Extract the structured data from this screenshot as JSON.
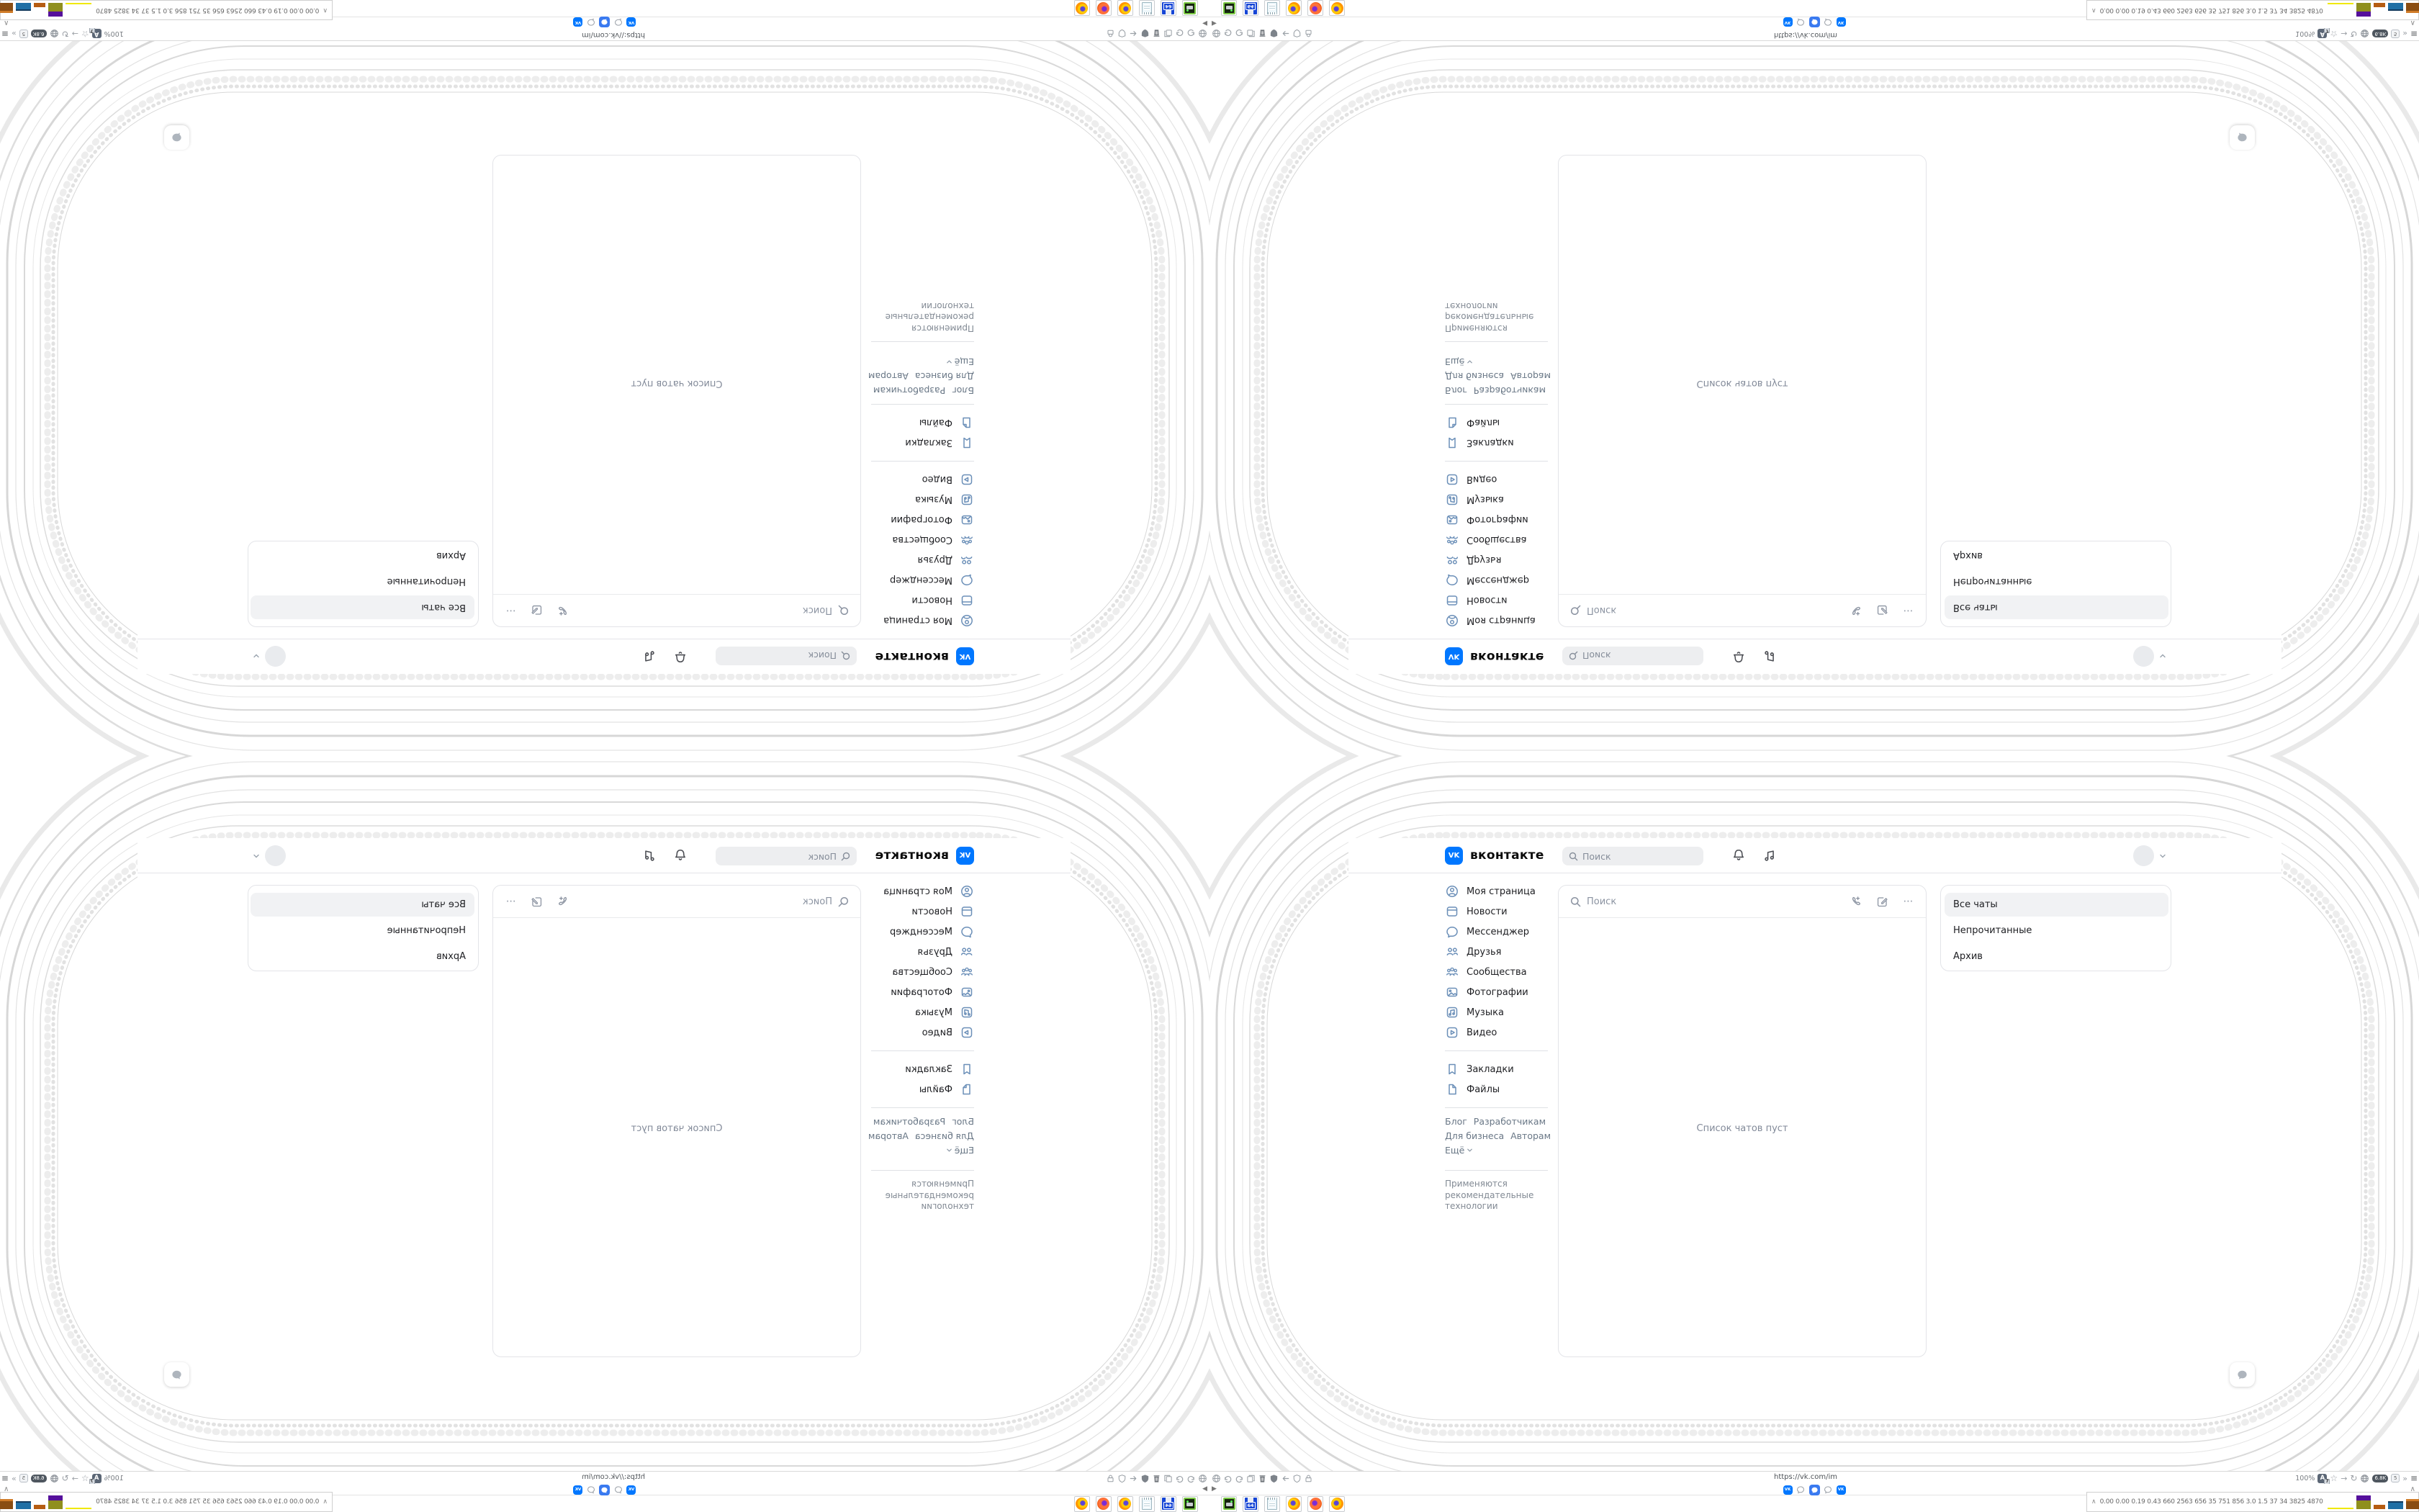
{
  "vk": {
    "logo": "VK",
    "brand": "вконтакте",
    "header_search_placeholder": "Поиск",
    "header_icons": {
      "bell": "notification-bell",
      "music": "music-note",
      "avatar": "profile-avatar"
    },
    "sidebar": {
      "items": [
        {
          "icon": "profile-icon",
          "label": "Моя страница"
        },
        {
          "icon": "news-icon",
          "label": "Новости"
        },
        {
          "icon": "messenger-icon",
          "label": "Мессенджер"
        },
        {
          "icon": "friends-icon",
          "label": "Друзья"
        },
        {
          "icon": "communities-icon",
          "label": "Сообщества"
        },
        {
          "icon": "photos-icon",
          "label": "Фотографии"
        },
        {
          "icon": "music-icon",
          "label": "Музыка"
        },
        {
          "icon": "video-icon",
          "label": "Видео"
        }
      ],
      "extra": [
        {
          "icon": "bookmark-icon",
          "label": "Закладки"
        },
        {
          "icon": "file-icon",
          "label": "Файлы"
        }
      ],
      "links": [
        "Блог",
        "Разработчикам",
        "Для бизнеса",
        "Авторам",
        "Ещё"
      ],
      "note": "Применяются рекомендательные технологии"
    },
    "messenger": {
      "search_placeholder": "Поиск",
      "actions": [
        "add-call-icon",
        "compose-icon",
        "more-dots-icon"
      ],
      "empty_text": "Список чатов пуст"
    },
    "filters": {
      "all": "Все чаты",
      "unread": "Непрочитанные",
      "archive": "Архив"
    },
    "colors": {
      "accent": "#0077ff",
      "icon_blue": "#6b8fb8",
      "divider": "#e4e5e9",
      "muted_text": "#828a99"
    }
  },
  "browser": {
    "url": "https://vk.com/im",
    "zoom_level": "100%",
    "font_badge_letter": "A",
    "font_badge_sub": "7",
    "stats_badge": "6.8K",
    "ext_badge": "5",
    "glyphs": {
      "star": "☆",
      "forward": "→",
      "reload": "↻",
      "more": "»",
      "menu": "≡",
      "play": "▶",
      "chevron_up": "∧",
      "dots": "⋯"
    },
    "bookmarks": [
      {
        "icon": "vk-bookmark"
      },
      {
        "icon": "chat-bookmark"
      },
      {
        "icon": "chat-bookmark-active"
      },
      {
        "icon": "chat-bookmark"
      },
      {
        "icon": "vk-bookmark"
      }
    ]
  },
  "taskbar": {
    "floppy_label": "64",
    "items": [
      "drive-app",
      "floppy-64-app",
      "notepad-app",
      "firefox-app",
      "firefox-app",
      "firefox-app"
    ]
  },
  "monitor": {
    "values": "0.00 0.00 0.19 0.43 660 2563 656 35 751 856 3.0 1.5 37 34 3825 4870",
    "bars": [
      {
        "w": 36,
        "h": 2,
        "color": "#f0e800"
      },
      {
        "w": 20,
        "h": 12,
        "color": "#8f8f1d",
        "cap_h": 7,
        "cap_color": "#55109b"
      },
      {
        "w": 16,
        "h": 6,
        "color": "#b55c12"
      },
      {
        "w": 21,
        "h": 9,
        "color": "#1f6fa5",
        "cap_h": 2,
        "cap_color": "#123a5e"
      },
      {
        "w": 21,
        "h": 11,
        "color": "#8a4d12",
        "cap_h": 3,
        "cap_color": "#d07c28"
      },
      {
        "w": 14,
        "h": 2,
        "color": "#3ecf3e"
      },
      {
        "w": 12,
        "h": 2,
        "color": "#3ecf3e",
        "cap_h": 3,
        "cap_color": "#9c1f1f"
      }
    ]
  }
}
